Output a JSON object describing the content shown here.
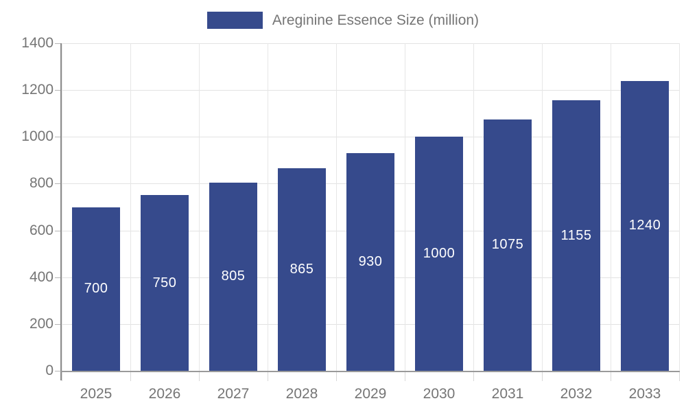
{
  "legend": {
    "label": "Areginine Essence Size (million)"
  },
  "chart_data": {
    "type": "bar",
    "title": "",
    "xlabel": "",
    "ylabel": "",
    "categories": [
      "2025",
      "2026",
      "2027",
      "2028",
      "2029",
      "2030",
      "2031",
      "2032",
      "2033"
    ],
    "series": [
      {
        "name": "Areginine Essence Size (million)",
        "values": [
          700,
          750,
          805,
          865,
          930,
          1000,
          1075,
          1155,
          1240
        ]
      }
    ],
    "bar_value_labels": [
      "700",
      "750",
      "805",
      "865",
      "930",
      "1000",
      "1075",
      "1155",
      "1240"
    ],
    "ylim": [
      0,
      1400
    ],
    "yticks": [
      0,
      200,
      400,
      600,
      800,
      1000,
      1200,
      1400
    ],
    "grid": true,
    "legend_position": "top"
  },
  "colors": {
    "bar": "#364A8C",
    "value_label": "#ffffff",
    "tick_label": "#757575",
    "legend_text": "#757575",
    "grid": "#e2e2e2",
    "axis_line": "#9a9a9a",
    "background": "#ffffff"
  }
}
